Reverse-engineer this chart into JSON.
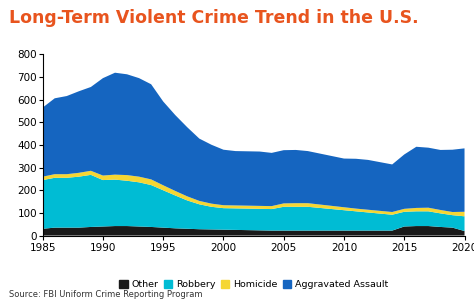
{
  "title": "Long-Term Violent Crime Trend in the U.S.",
  "title_color": "#e8541e",
  "source": "Source: FBI Uniform Crime Reporting Program",
  "years": [
    1985,
    1986,
    1987,
    1988,
    1989,
    1990,
    1991,
    1992,
    1993,
    1994,
    1995,
    1996,
    1997,
    1998,
    1999,
    2000,
    2001,
    2002,
    2003,
    2004,
    2005,
    2006,
    2007,
    2008,
    2009,
    2010,
    2011,
    2012,
    2013,
    2014,
    2015,
    2016,
    2017,
    2018,
    2019,
    2020
  ],
  "other": [
    30,
    35,
    35,
    35,
    38,
    40,
    42,
    42,
    40,
    38,
    35,
    32,
    30,
    28,
    27,
    26,
    25,
    24,
    23,
    22,
    22,
    22,
    22,
    22,
    22,
    22,
    22,
    22,
    22,
    22,
    40,
    42,
    42,
    38,
    35,
    20
  ],
  "robbery": [
    215,
    220,
    220,
    225,
    230,
    205,
    205,
    200,
    195,
    185,
    165,
    145,
    125,
    110,
    100,
    95,
    95,
    95,
    95,
    95,
    105,
    105,
    105,
    100,
    95,
    90,
    85,
    80,
    75,
    70,
    65,
    65,
    65,
    60,
    55,
    65
  ],
  "homicide": [
    15,
    16,
    16,
    17,
    18,
    20,
    22,
    25,
    25,
    25,
    22,
    20,
    18,
    15,
    14,
    13,
    13,
    13,
    13,
    13,
    15,
    16,
    16,
    15,
    14,
    13,
    12,
    12,
    12,
    12,
    13,
    15,
    16,
    15,
    14,
    20
  ],
  "aggravated_assault": [
    305,
    335,
    345,
    360,
    370,
    430,
    450,
    445,
    435,
    420,
    370,
    335,
    305,
    275,
    260,
    245,
    240,
    240,
    240,
    235,
    235,
    235,
    230,
    225,
    220,
    215,
    220,
    220,
    215,
    210,
    240,
    270,
    265,
    265,
    275,
    280
  ],
  "colors": {
    "other": "#1a1a1a",
    "robbery": "#00bcd4",
    "homicide": "#f5d633",
    "aggravated_assault": "#1565c0"
  },
  "ylim": [
    0,
    800
  ],
  "yticks": [
    0,
    100,
    200,
    300,
    400,
    500,
    600,
    700,
    800
  ],
  "xticks": [
    1985,
    1990,
    1995,
    2000,
    2005,
    2010,
    2015,
    2020
  ],
  "background_color": "#ffffff",
  "legend_labels": [
    "Other",
    "Robbery",
    "Homicide",
    "Aggravated Assault"
  ]
}
